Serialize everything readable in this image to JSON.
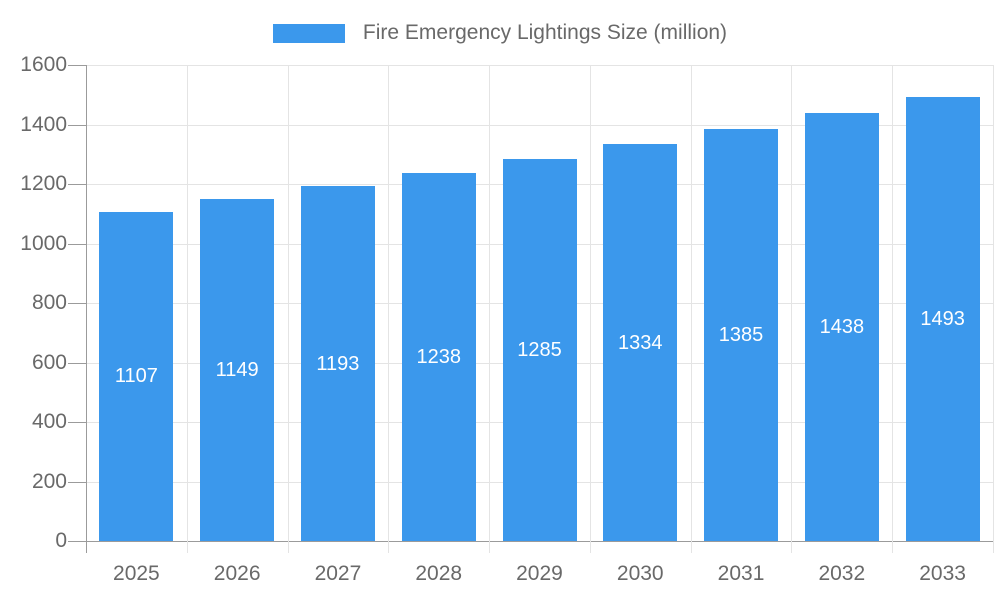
{
  "legend": {
    "label": "Fire Emergency Lightings Size (million)",
    "swatch_icon": "legend-swatch-square"
  },
  "chart_data": {
    "type": "bar",
    "title": "Fire Emergency Lightings Size (million)",
    "categories": [
      "2025",
      "2026",
      "2027",
      "2028",
      "2029",
      "2030",
      "2031",
      "2032",
      "2033"
    ],
    "values": [
      1107,
      1149,
      1193,
      1238,
      1285,
      1334,
      1385,
      1438,
      1493
    ],
    "series_name": "Fire Emergency Lightings Size (million)",
    "xlabel": "",
    "ylabel": "",
    "ylim": [
      0,
      1600
    ],
    "yticks": [
      0,
      200,
      400,
      600,
      800,
      1000,
      1200,
      1400,
      1600
    ],
    "grid": true,
    "legend_position": "top-center",
    "value_labels": "inside-center",
    "colors": {
      "bar": "#3b98ec",
      "value_label": "#ffffff",
      "axis": "#9b9b9b",
      "grid": "#e4e4e4",
      "text": "#696969"
    }
  }
}
